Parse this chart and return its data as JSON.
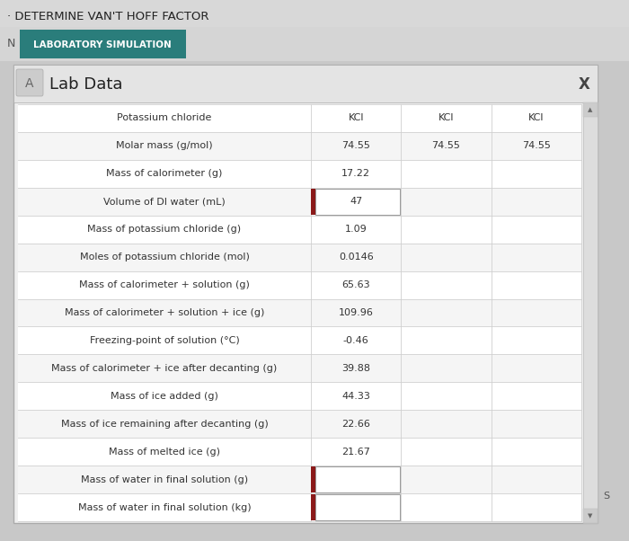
{
  "title_text": "· DETERMINE VAN'T HOFF FACTOR",
  "tab_text": "LABORATORY SIMULATION",
  "panel_title": "Lab Data",
  "close_x": "X",
  "bg_color": "#c8c8c8",
  "outer_bg": "#c0c0c0",
  "top_bar_color": "#e0e0e0",
  "tab_bar_color": "#d8d8d8",
  "panel_bg": "#efefef",
  "panel_header_bg": "#e8e8e8",
  "teal_tab_color": "#2a7d7b",
  "rows": [
    [
      "Potassium chloride",
      "KCl",
      "KCl",
      "KCl"
    ],
    [
      "Molar mass (g/mol)",
      "74.55",
      "74.55",
      "74.55"
    ],
    [
      "Mass of calorimeter (g)",
      "17.22",
      "",
      ""
    ],
    [
      "Volume of DI water (mL)",
      "47",
      "",
      ""
    ],
    [
      "Mass of potassium chloride (g)",
      "1.09",
      "",
      ""
    ],
    [
      "Moles of potassium chloride (mol)",
      "0.0146",
      "",
      ""
    ],
    [
      "Mass of calorimeter + solution (g)",
      "65.63",
      "",
      ""
    ],
    [
      "Mass of calorimeter + solution + ice (g)",
      "109.96",
      "",
      ""
    ],
    [
      "Freezing-point of solution (°C)",
      "-0.46",
      "",
      ""
    ],
    [
      "Mass of calorimeter + ice after decanting (g)",
      "39.88",
      "",
      ""
    ],
    [
      "Mass of ice added (g)",
      "44.33",
      "",
      ""
    ],
    [
      "Mass of ice remaining after decanting (g)",
      "22.66",
      "",
      ""
    ],
    [
      "Mass of melted ice (g)",
      "21.67",
      "",
      ""
    ],
    [
      "Mass of water in final solution (g)",
      "",
      "",
      ""
    ],
    [
      "Mass of water in final solution (kg)",
      "",
      "",
      ""
    ]
  ],
  "red_marker_rows": [
    3,
    13,
    14
  ],
  "grid_color": "#d0d0d0",
  "text_color": "#333333",
  "active_cell_border": "#8b1a1a",
  "row_bg_even": "#ffffff",
  "row_bg_odd": "#f5f5f5"
}
